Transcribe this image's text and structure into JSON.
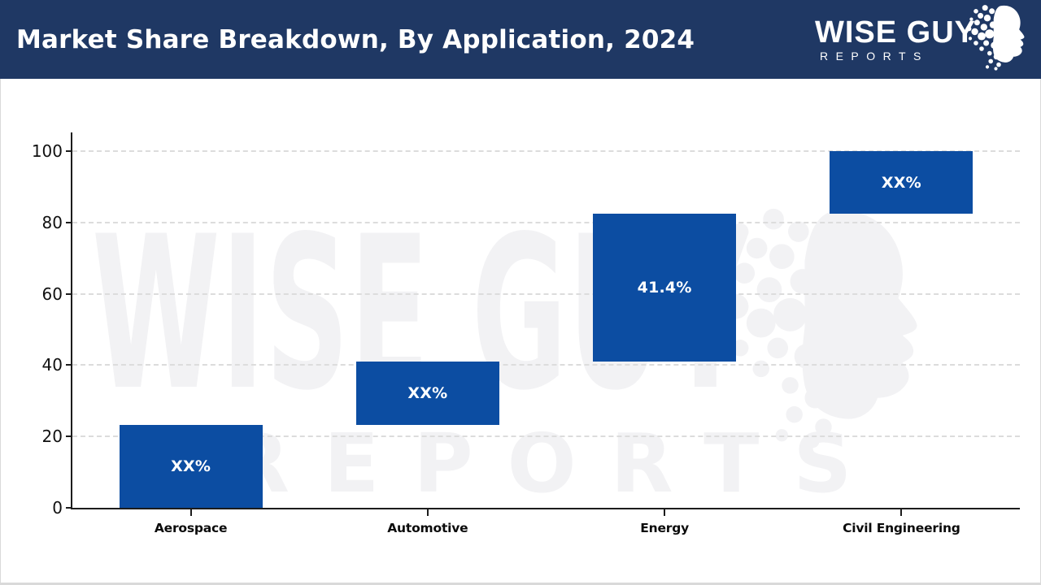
{
  "header": {
    "title": "Market Share Breakdown, By Application, 2024",
    "logo": {
      "line1": "WISE GUY",
      "line2": "REPORTS"
    }
  },
  "watermark": {
    "line1": "WISE GUY",
    "line2": "REPORTS"
  },
  "colors": {
    "header_bg": "#1F3864",
    "bar": "#0C4DA2",
    "grid": "#DCDCDC",
    "axis": "#1C1C1C",
    "tick_text": "#111111",
    "watermark": "#F2F2F4",
    "bar_label": "#FFFFFF",
    "border": "#D9D9D9"
  },
  "chart_data": {
    "type": "bar",
    "subtype": "floating-waterfall",
    "title": "Market Share Breakdown, By Application, 2024",
    "categories": [
      "Aerospace",
      "Automotive",
      "Energy",
      "Civil Engineering"
    ],
    "segments": [
      {
        "category": "Aerospace",
        "start": 0,
        "end": 23.2,
        "label": "XX%"
      },
      {
        "category": "Automotive",
        "start": 23.2,
        "end": 41.0,
        "label": "XX%"
      },
      {
        "category": "Energy",
        "start": 41.0,
        "end": 82.4,
        "label": "41.4%"
      },
      {
        "category": "Civil Engineering",
        "start": 82.4,
        "end": 100,
        "label": "XX%"
      }
    ],
    "xlabel": "",
    "ylabel": "",
    "ylim": [
      0,
      100
    ],
    "yticks": [
      0,
      20,
      40,
      60,
      80,
      100
    ],
    "grid": true,
    "legend": false
  }
}
